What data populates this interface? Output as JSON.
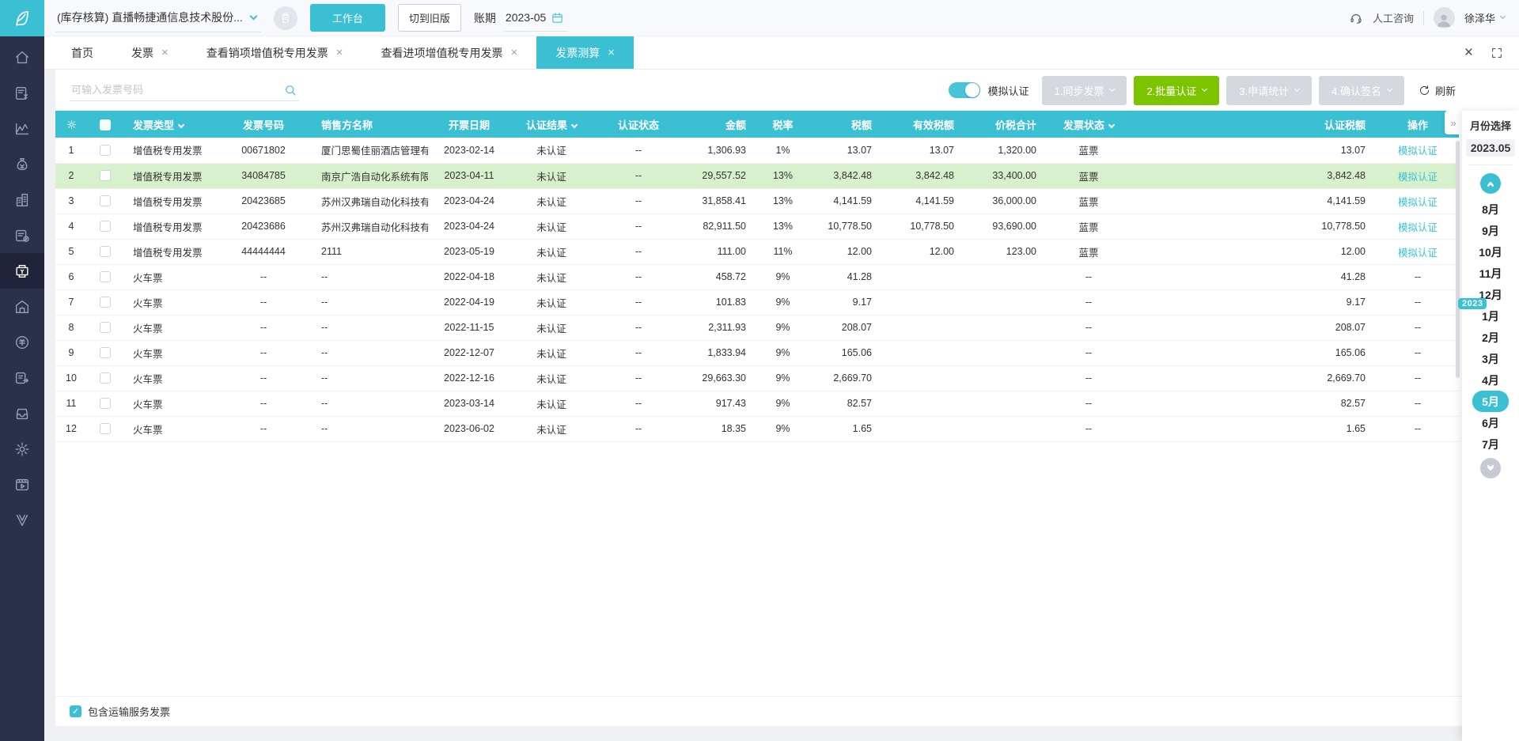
{
  "colors": {
    "teal": "#3bc0d3",
    "green": "#7dc400",
    "row_highlight": "#d7f1cd",
    "sidebar_bg": "#2b3148"
  },
  "icons": {
    "close": "×",
    "expander": "»"
  },
  "topbar": {
    "company": "(库存核算) 直播畅捷通信息技术股份...",
    "workbench": "工作台",
    "switch_version": "切到旧版",
    "period_label": "账期",
    "period_value": "2023-05",
    "support": "人工咨询",
    "user": "徐泽华"
  },
  "tabs": [
    {
      "label": "首页",
      "closable": false,
      "active": false
    },
    {
      "label": "发票",
      "closable": true,
      "active": false
    },
    {
      "label": "查看销项增值税专用发票",
      "closable": true,
      "active": false
    },
    {
      "label": "查看进项增值税专用发票",
      "closable": true,
      "active": false
    },
    {
      "label": "发票测算",
      "closable": true,
      "active": true
    }
  ],
  "toolbar": {
    "search_placeholder": "可输入发票号码",
    "toggle_label": "模拟认证",
    "toggle_on": true,
    "buttons": [
      {
        "label": "1.同步发票",
        "style": "gray"
      },
      {
        "label": "2.批量认证",
        "style": "green"
      },
      {
        "label": "3.申请统计",
        "style": "gray"
      },
      {
        "label": "4.确认签名",
        "style": "gray"
      }
    ],
    "refresh": "刷新"
  },
  "table": {
    "columns": [
      {
        "label": "发票类型",
        "sort": true
      },
      {
        "label": "发票号码",
        "sort": false
      },
      {
        "label": "销售方名称",
        "sort": false
      },
      {
        "label": "开票日期",
        "sort": false
      },
      {
        "label": "认证结果",
        "sort": true
      },
      {
        "label": "认证状态",
        "sort": false
      },
      {
        "label": "金额",
        "sort": false
      },
      {
        "label": "税率",
        "sort": false
      },
      {
        "label": "税额",
        "sort": false
      },
      {
        "label": "有效税额",
        "sort": false
      },
      {
        "label": "价税合计",
        "sort": false
      },
      {
        "label": "发票状态",
        "sort": true
      },
      {
        "label": "认证税额",
        "sort": false
      },
      {
        "label": "操作",
        "sort": false
      }
    ],
    "rows": [
      {
        "num": "1",
        "highlight": false,
        "cells": [
          "增值税专用发票",
          "00671802",
          "厦门思蜀佳丽酒店管理有限...",
          "2023-02-14",
          "未认证",
          "--",
          "1,306.93",
          "1%",
          "13.07",
          "13.07",
          "1,320.00",
          "蓝票",
          "13.07",
          "模拟认证"
        ]
      },
      {
        "num": "2",
        "highlight": true,
        "cells": [
          "增值税专用发票",
          "34084785",
          "南京广浩自动化系统有限责...",
          "2023-04-11",
          "未认证",
          "--",
          "29,557.52",
          "13%",
          "3,842.48",
          "3,842.48",
          "33,400.00",
          "蓝票",
          "3,842.48",
          "模拟认证"
        ]
      },
      {
        "num": "3",
        "highlight": false,
        "cells": [
          "增值税专用发票",
          "20423685",
          "苏州汉弗瑞自动化科技有限...",
          "2023-04-24",
          "未认证",
          "--",
          "31,858.41",
          "13%",
          "4,141.59",
          "4,141.59",
          "36,000.00",
          "蓝票",
          "4,141.59",
          "模拟认证"
        ]
      },
      {
        "num": "4",
        "highlight": false,
        "cells": [
          "增值税专用发票",
          "20423686",
          "苏州汉弗瑞自动化科技有限...",
          "2023-04-24",
          "未认证",
          "--",
          "82,911.50",
          "13%",
          "10,778.50",
          "10,778.50",
          "93,690.00",
          "蓝票",
          "10,778.50",
          "模拟认证"
        ]
      },
      {
        "num": "5",
        "highlight": false,
        "cells": [
          "增值税专用发票",
          "44444444",
          "2111",
          "2023-05-19",
          "未认证",
          "--",
          "111.00",
          "11%",
          "12.00",
          "12.00",
          "123.00",
          "蓝票",
          "12.00",
          "模拟认证"
        ]
      },
      {
        "num": "6",
        "highlight": false,
        "cells": [
          "火车票",
          "--",
          "--",
          "2022-04-18",
          "未认证",
          "--",
          "458.72",
          "9%",
          "41.28",
          "",
          "",
          "--",
          "41.28",
          "--"
        ]
      },
      {
        "num": "7",
        "highlight": false,
        "cells": [
          "火车票",
          "--",
          "--",
          "2022-04-19",
          "未认证",
          "--",
          "101.83",
          "9%",
          "9.17",
          "",
          "",
          "--",
          "9.17",
          "--"
        ]
      },
      {
        "num": "8",
        "highlight": false,
        "cells": [
          "火车票",
          "--",
          "--",
          "2022-11-15",
          "未认证",
          "--",
          "2,311.93",
          "9%",
          "208.07",
          "",
          "",
          "--",
          "208.07",
          "--"
        ]
      },
      {
        "num": "9",
        "highlight": false,
        "cells": [
          "火车票",
          "--",
          "--",
          "2022-12-07",
          "未认证",
          "--",
          "1,833.94",
          "9%",
          "165.06",
          "",
          "",
          "--",
          "165.06",
          "--"
        ]
      },
      {
        "num": "10",
        "highlight": false,
        "cells": [
          "火车票",
          "--",
          "--",
          "2022-12-16",
          "未认证",
          "--",
          "29,663.30",
          "9%",
          "2,669.70",
          "",
          "",
          "--",
          "2,669.70",
          "--"
        ]
      },
      {
        "num": "11",
        "highlight": false,
        "cells": [
          "火车票",
          "--",
          "--",
          "2023-03-14",
          "未认证",
          "--",
          "917.43",
          "9%",
          "82.57",
          "",
          "",
          "--",
          "82.57",
          "--"
        ]
      },
      {
        "num": "12",
        "highlight": false,
        "cells": [
          "火车票",
          "--",
          "--",
          "2023-06-02",
          "未认证",
          "--",
          "18.35",
          "9%",
          "1.65",
          "",
          "",
          "--",
          "1.65",
          "--"
        ]
      }
    ]
  },
  "month_panel": {
    "title": "月份选择",
    "current": "2023.05",
    "months": [
      {
        "label": "8月"
      },
      {
        "label": "9月"
      },
      {
        "label": "10月"
      },
      {
        "label": "11月"
      },
      {
        "label": "12月"
      },
      {
        "label": "1月",
        "year_badge": "2023"
      },
      {
        "label": "2月"
      },
      {
        "label": "3月"
      },
      {
        "label": "4月"
      },
      {
        "label": "5月",
        "selected": true
      },
      {
        "label": "6月"
      },
      {
        "label": "7月"
      }
    ]
  },
  "footer": {
    "checkbox_label": "包含运输服务发票",
    "checked": true
  }
}
